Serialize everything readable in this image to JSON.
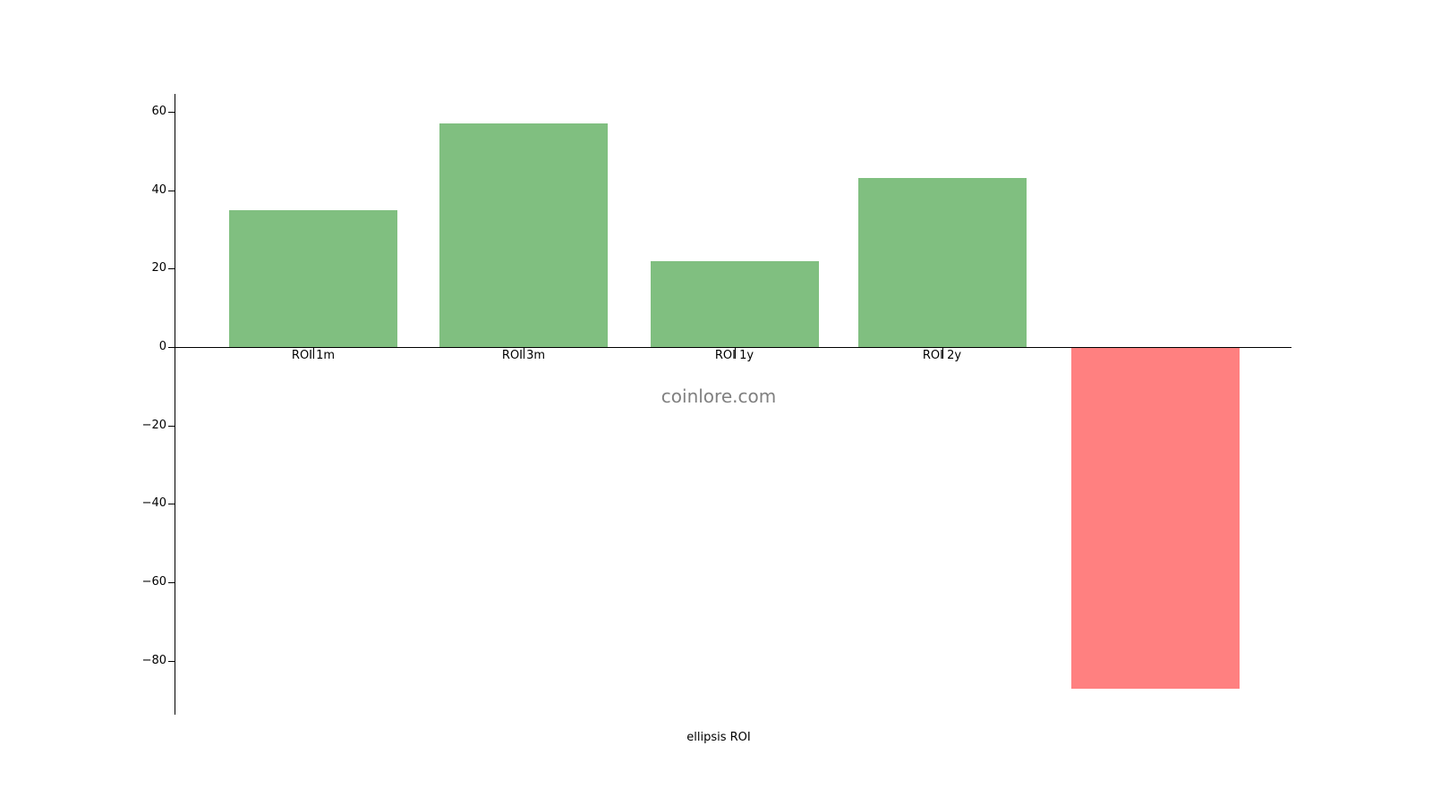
{
  "watermark": {
    "text": "coinlore.com",
    "color": "#808080"
  },
  "chart_data": {
    "type": "bar",
    "title": "",
    "xlabel": "ellipsis ROI",
    "ylabel": "",
    "categories": [
      "ROI 1m",
      "ROI 3m",
      "ROI 1y",
      "ROI 2y",
      ""
    ],
    "values": [
      35,
      57,
      22,
      43,
      -87
    ],
    "positive_color": "#80bf80",
    "negative_color": "#ff8080",
    "axis_color": "#000000",
    "yticks": [
      60,
      40,
      20,
      0,
      -20,
      -40,
      -60,
      -80
    ],
    "ytick_labels": [
      "60",
      "40",
      "20",
      "0",
      "−20",
      "−40",
      "−60",
      "−80"
    ],
    "ylim": [
      -93.7,
      64.5
    ],
    "grid": false,
    "legend": false,
    "watermark": "coinlore.com"
  }
}
